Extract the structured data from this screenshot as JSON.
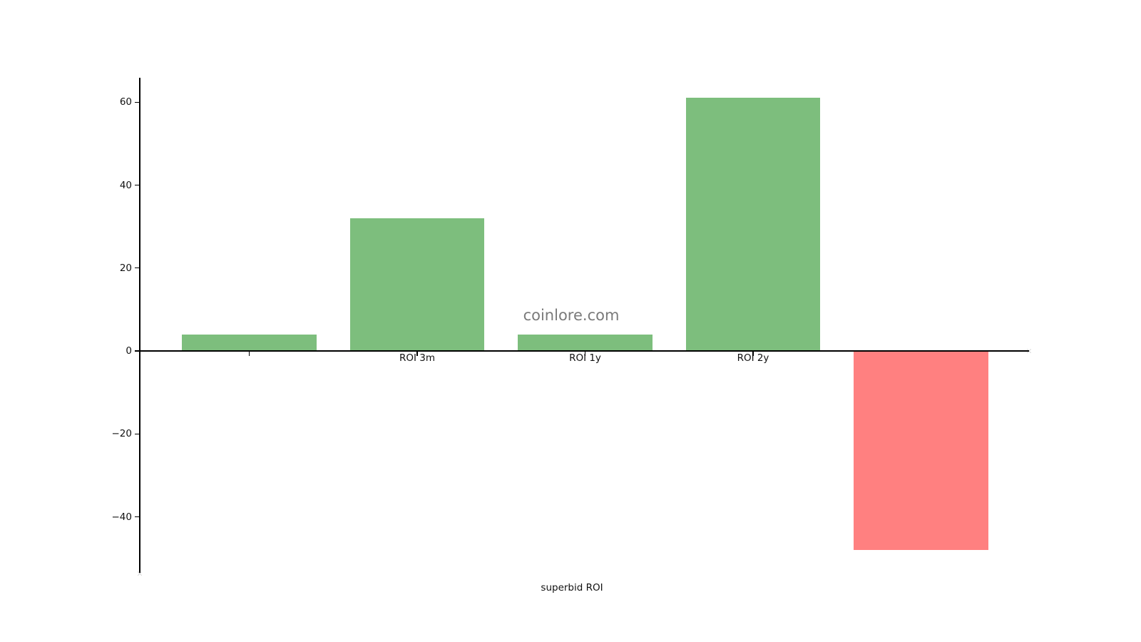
{
  "page": {
    "background": "#ffffff"
  },
  "chart_data": {
    "type": "bar",
    "title": "superbid ROI",
    "title_position": "bottom",
    "watermark": "coinlore.com",
    "categories": [
      "",
      "ROI 3m",
      "ROI 1y",
      "ROI 2y",
      ""
    ],
    "values": [
      4,
      32,
      4,
      61,
      -48
    ],
    "bar_colors": [
      "#7dbe7d",
      "#7dbe7d",
      "#7dbe7d",
      "#7dbe7d",
      "#ff8080"
    ],
    "positive_color": "#7dbe7d",
    "negative_color": "#ff8080",
    "yticks": [
      {
        "label": "60",
        "value": 60
      },
      {
        "label": "40",
        "value": 40
      },
      {
        "label": "20",
        "value": 20
      },
      {
        "label": "0",
        "value": 0
      },
      {
        "label": "−20",
        "value": -20
      },
      {
        "label": "−40",
        "value": -40
      }
    ],
    "xticks_visible": [
      true,
      true,
      true,
      true,
      false
    ],
    "ylim": [
      -53.5,
      66
    ],
    "xlabel": "superbid ROI",
    "ylabel": "",
    "grid": false,
    "legend": null,
    "axis_color": "#000000",
    "text_color": "#111111",
    "watermark_color": "#7a7a7a"
  }
}
